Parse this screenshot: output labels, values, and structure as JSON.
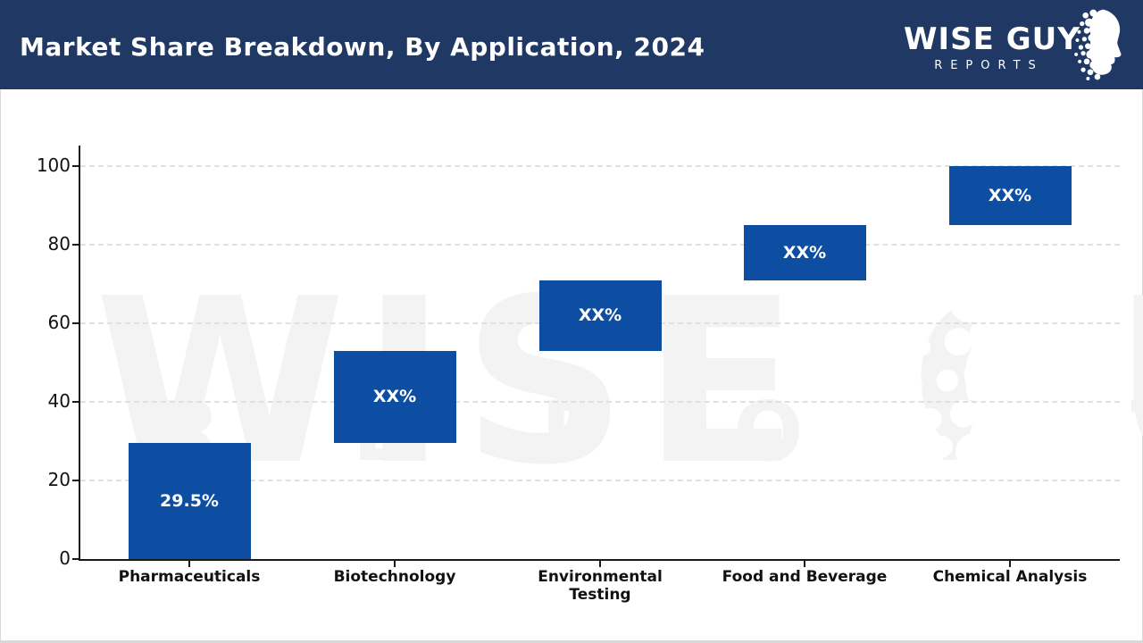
{
  "header": {
    "title": "Market Share Breakdown, By Application, 2024",
    "bg_color": "#1f3864",
    "logo": {
      "line1": "WISE GUY",
      "line2": "REPORTS"
    }
  },
  "watermark": {
    "line1": "WISE GUY",
    "line2": "R E P O R T S"
  },
  "chart_data": {
    "type": "bar",
    "subtype": "waterfall",
    "title": "Market Share Breakdown, By Application, 2024",
    "categories": [
      "Pharmaceuticals",
      "Biotechnology",
      "Environmental\nTesting",
      "Food and Beverage",
      "Chemical Analysis"
    ],
    "series": [
      {
        "name": "Market Share (%)",
        "starts": [
          0,
          29.5,
          53,
          71,
          85
        ],
        "ends": [
          29.5,
          53,
          71,
          85,
          100
        ],
        "values": [
          29.5,
          23.5,
          18,
          14,
          15
        ]
      }
    ],
    "bar_labels": [
      "29.5%",
      "XX%",
      "XX%",
      "XX%",
      "XX%"
    ],
    "yticks": [
      0,
      20,
      40,
      60,
      80,
      100
    ],
    "ytick_labels": [
      "0",
      "20",
      "40",
      "60",
      "80",
      "100"
    ],
    "ylim": [
      0,
      105
    ],
    "xlabel": "",
    "ylabel": "",
    "legend": "none",
    "grid": "horizontal-dashed",
    "bar_color": "#0d4ea2",
    "bar_label_color": "#ffffff",
    "axis_color": "#1a1a1a",
    "grid_color": "#e0e0e0"
  }
}
